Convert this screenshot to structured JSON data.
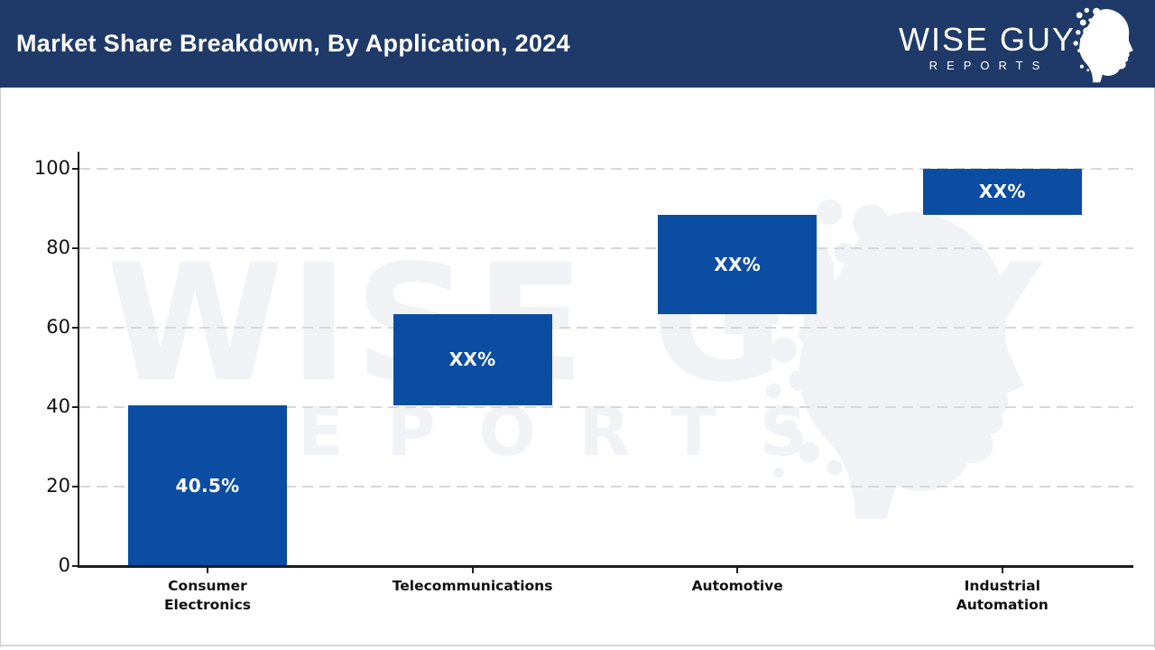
{
  "header": {
    "title": "Market Share Breakdown, By Application, 2024",
    "logo": {
      "line1": "WISE GUY",
      "line2": "REPORTS"
    }
  },
  "watermark": {
    "line1": "WISE GUY",
    "line2": "REPORTS"
  },
  "chart_data": {
    "type": "bar",
    "subtype": "waterfall",
    "title": "Market Share Breakdown, By Application, 2024",
    "categories": [
      [
        "Consumer",
        "Electronics"
      ],
      [
        "Telecommunications"
      ],
      [
        "Automotive"
      ],
      [
        "Industrial",
        "Automation"
      ]
    ],
    "segments": [
      {
        "label": "40.5%",
        "start": 0,
        "end": 40.5
      },
      {
        "label": "XX%",
        "start": 40.5,
        "end": 63.5
      },
      {
        "label": "XX%",
        "start": 63.5,
        "end": 88.5
      },
      {
        "label": "XX%",
        "start": 88.5,
        "end": 100
      }
    ],
    "yticks": [
      0,
      20,
      40,
      60,
      80,
      100
    ],
    "ylim": [
      0,
      105
    ],
    "xlabel": "",
    "ylabel": "",
    "legend": "none",
    "grid": "horizontal-dashed",
    "bar_color": "#0b4da2",
    "bar_label_color": "#ffffff",
    "gridline_color": "#d7d7d7",
    "header_color": "#1f3a68",
    "watermark_color": "#f1f2f5"
  }
}
